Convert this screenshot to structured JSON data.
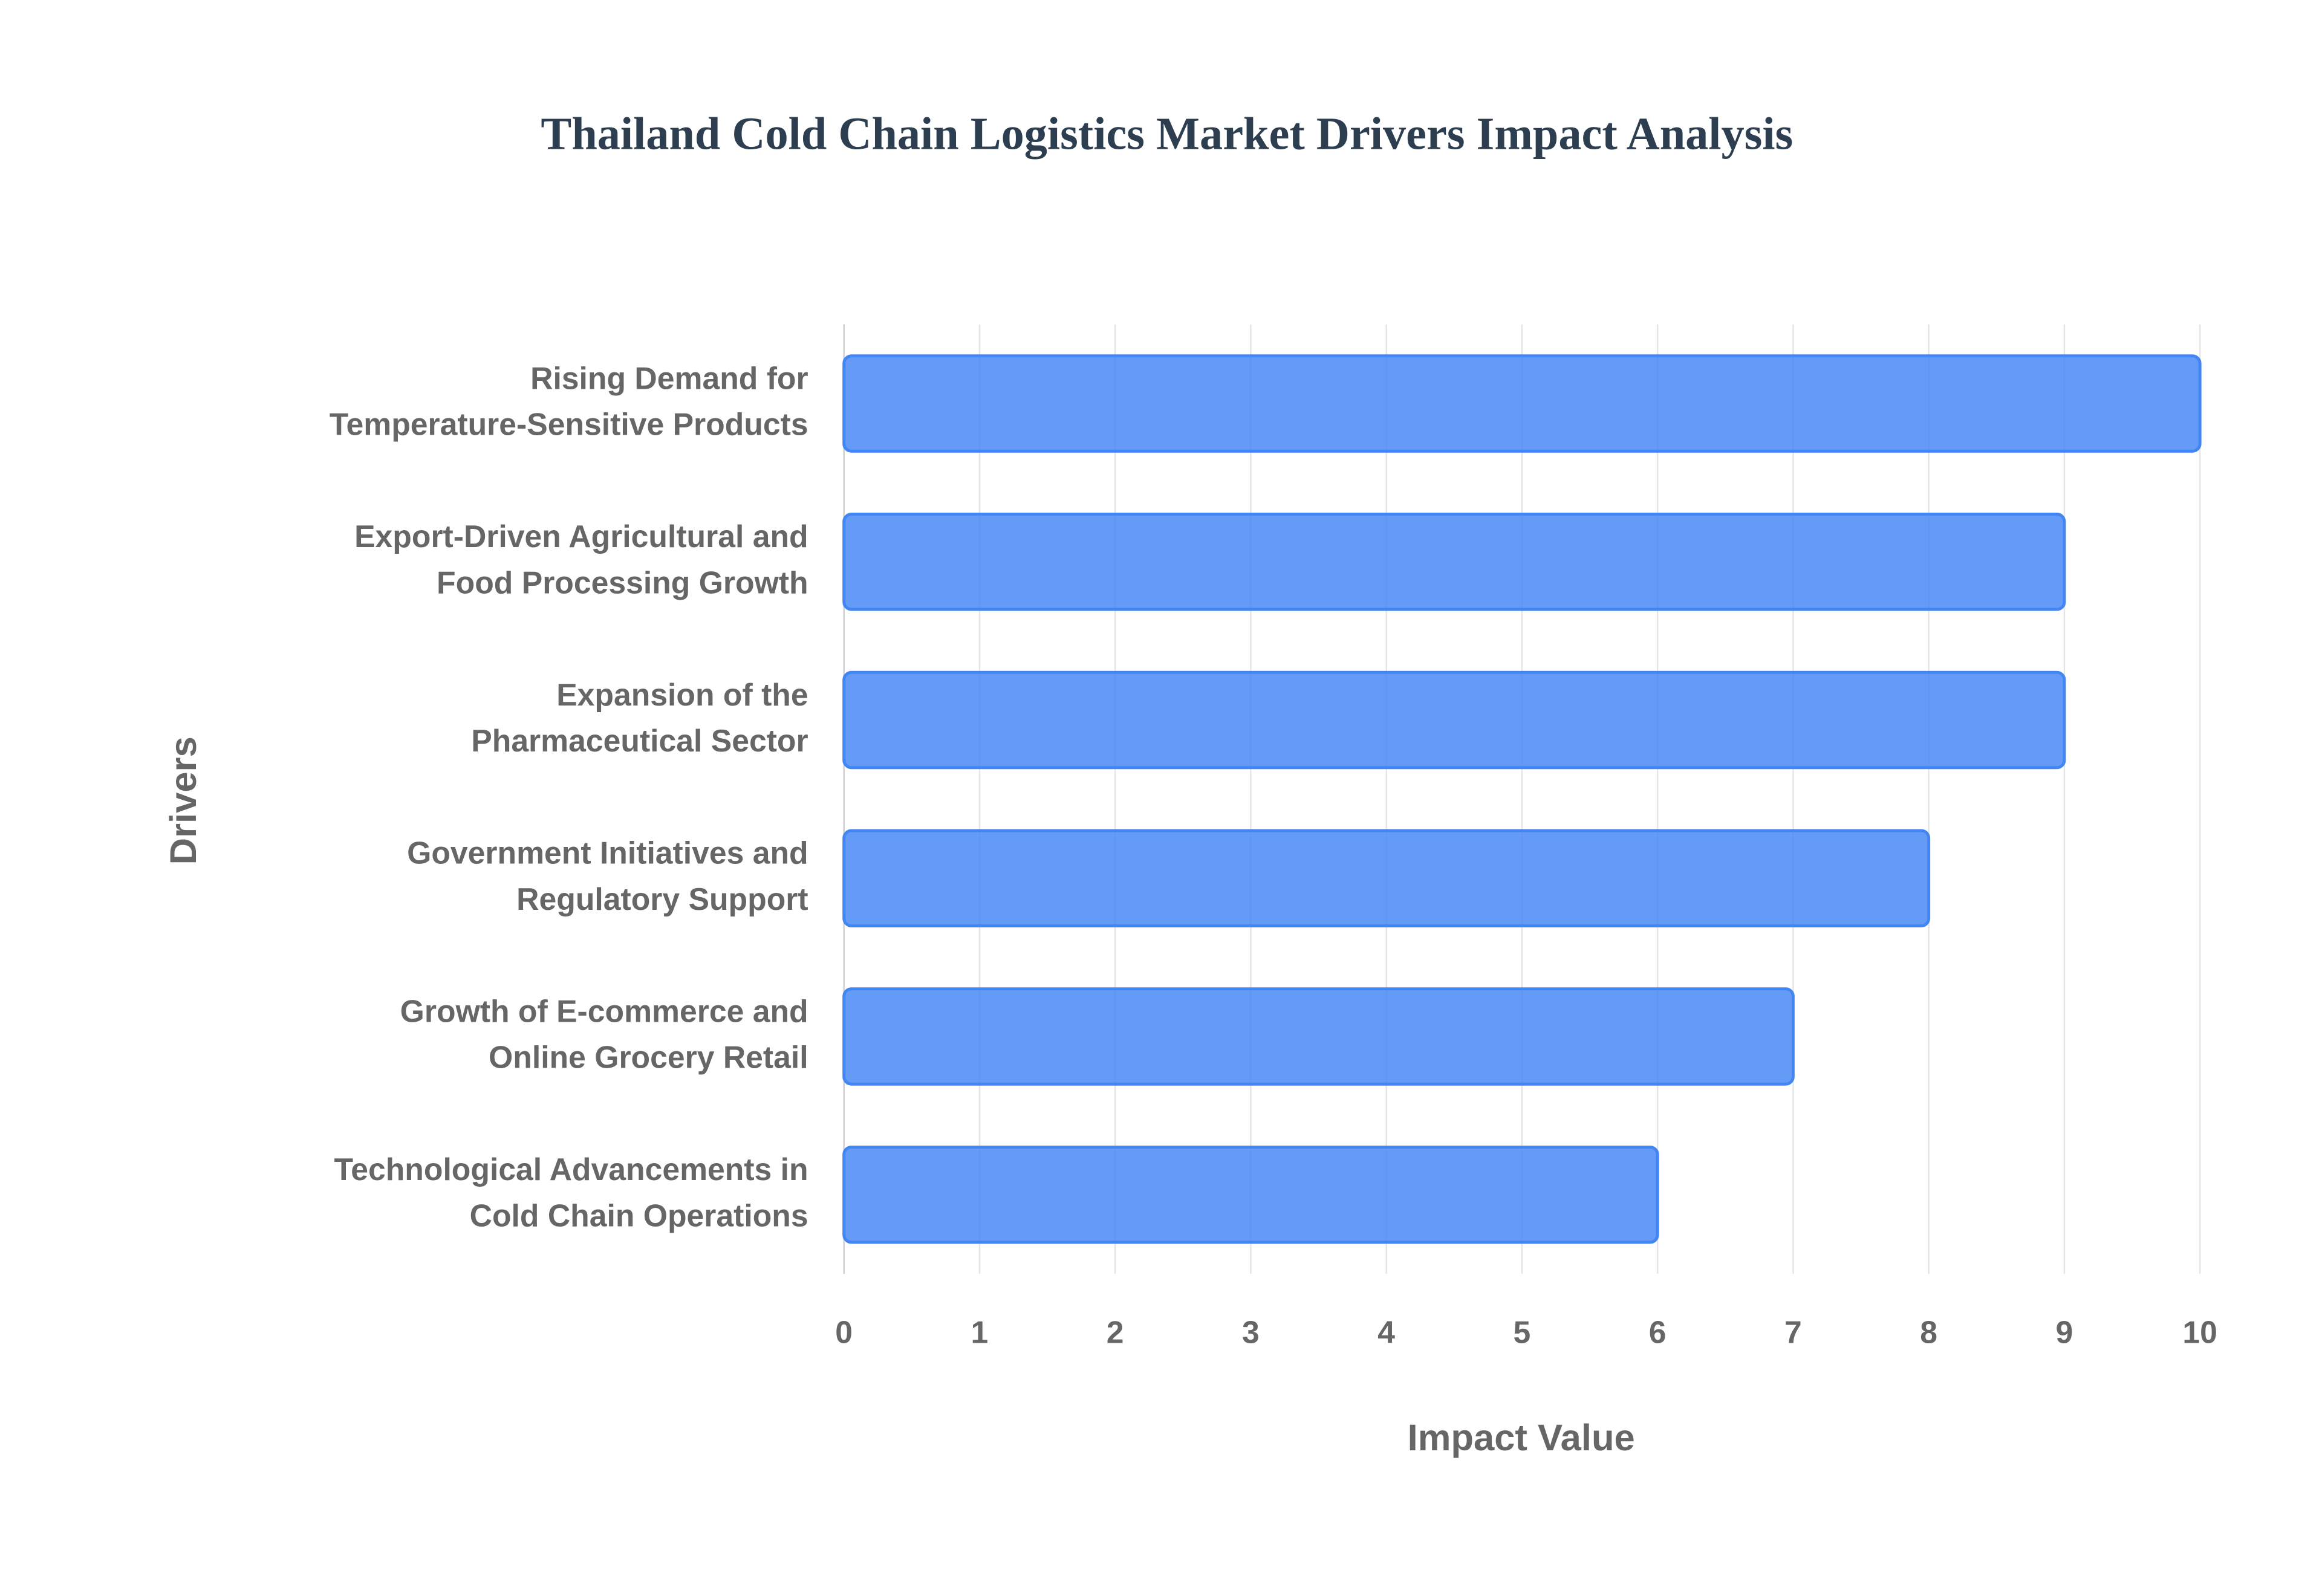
{
  "chart_data": {
    "type": "bar",
    "orientation": "horizontal",
    "title": "Thailand Cold Chain Logistics Market Drivers Impact Analysis",
    "x_label": "Impact Value",
    "y_label": "Drivers",
    "categories": [
      [
        "Rising Demand for",
        "Temperature-Sensitive Products"
      ],
      [
        "Export-Driven Agricultural and",
        "Food Processing Growth"
      ],
      [
        "Expansion of the",
        "Pharmaceutical Sector"
      ],
      [
        "Government Initiatives and",
        "Regulatory Support"
      ],
      [
        "Growth of E-commerce and",
        "Online Grocery Retail"
      ],
      [
        "Technological Advancements in",
        "Cold Chain Operations"
      ]
    ],
    "values": [
      10,
      9,
      9,
      8,
      7,
      6
    ],
    "color": "#4285f4",
    "xlim": [
      0,
      10
    ],
    "xticks": [
      0,
      1,
      2,
      3,
      4,
      5,
      6,
      7,
      8,
      9,
      10
    ],
    "grid": true
  }
}
